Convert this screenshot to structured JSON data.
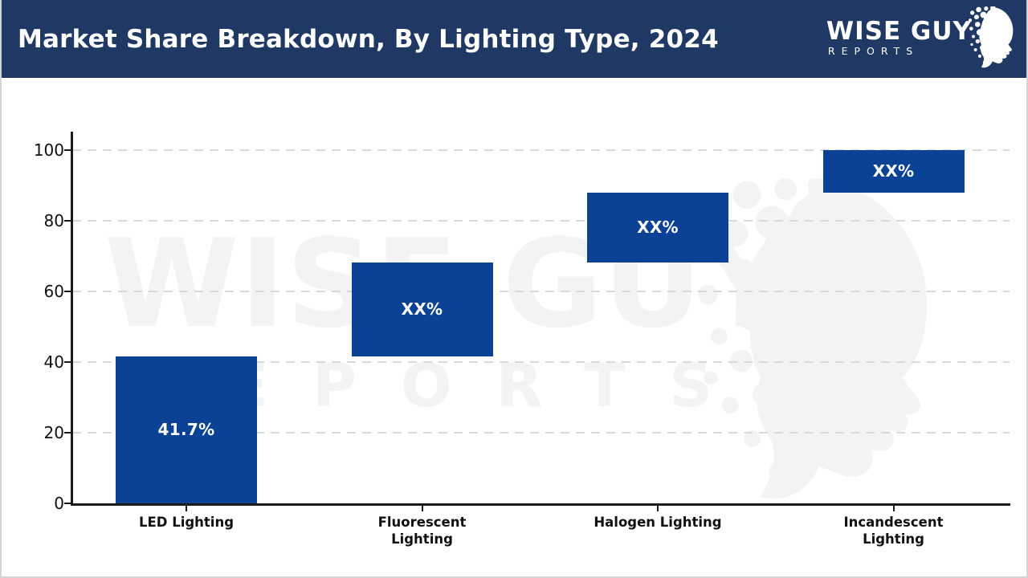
{
  "header": {
    "title": "Market Share Breakdown, By Lighting Type, 2024",
    "logo": {
      "wordmark": "WISE GUY",
      "subtext": "REPORTS"
    }
  },
  "watermark": {
    "wordmark": "WISE GUY",
    "subtext": "REPORTS"
  },
  "chart_data": {
    "type": "bar",
    "subtype": "waterfall-stacked-segments",
    "title": "Market Share Breakdown, By Lighting Type, 2024",
    "categories": [
      "LED Lighting",
      "Fluorescent\nLighting",
      "Halogen Lighting",
      "Incandescent\nLighting"
    ],
    "segments": [
      {
        "category": "LED Lighting",
        "start": 0,
        "end": 41.7,
        "value": 41.7,
        "label": "41.7%"
      },
      {
        "category": "Fluorescent Lighting",
        "start": 41.7,
        "end": 68.2,
        "value": 26.5,
        "label": "XX%"
      },
      {
        "category": "Halogen Lighting",
        "start": 68.2,
        "end": 88.0,
        "value": 19.8,
        "label": "XX%"
      },
      {
        "category": "Incandescent Lighting",
        "start": 88.0,
        "end": 100.0,
        "value": 12.0,
        "label": "XX%"
      }
    ],
    "yticks": [
      0,
      20,
      40,
      60,
      80,
      100
    ],
    "ylim": [
      0,
      105
    ],
    "xlabel": "",
    "ylabel": "",
    "grid": "horizontal-dashed",
    "legend": "none",
    "bar_color": "#0b4295"
  },
  "colors": {
    "header_bg": "#1f3864",
    "bar": "#0b4295",
    "gridline": "#d9d9d9",
    "axis": "#1a1a1a",
    "watermark": "#f2f3f5",
    "page_border": "#d4d4d4"
  }
}
